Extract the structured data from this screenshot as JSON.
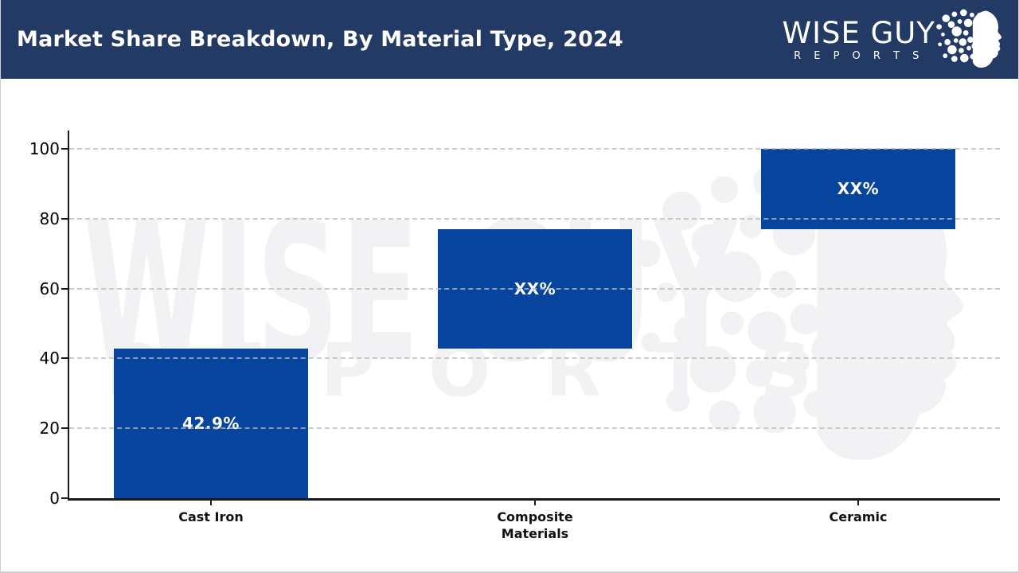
{
  "header": {
    "title": "Market Share Breakdown, By Material Type, 2024",
    "logo": {
      "line1": "WISE GUY",
      "line2": "R E P O R T S"
    }
  },
  "watermark": {
    "line1": "WISE GUY",
    "line2": "R E P O R T S"
  },
  "colors": {
    "header_bg": "#233A64",
    "bar_blue": "#07449E",
    "watermark_gray": "#F2F2F5",
    "gridline_gray": "#BEBEBE",
    "axis_black": "#1a1a1a",
    "label_white": "#ffffff"
  },
  "chart_data": {
    "type": "bar",
    "subtype": "stacked-percentage-waterfall",
    "title": "Market Share Breakdown, By Material Type, 2024",
    "categories": [
      "Cast Iron",
      "Composite Materials",
      "Ceramic"
    ],
    "bars": [
      {
        "category": "Cast Iron",
        "label_lines": [
          "Cast Iron"
        ],
        "value_label": "42.9%",
        "start": 0,
        "end": 42.9
      },
      {
        "category": "Composite Materials",
        "label_lines": [
          "Composite",
          "Materials"
        ],
        "value_label": "XX%",
        "start": 42.9,
        "end": 77.1
      },
      {
        "category": "Ceramic",
        "label_lines": [
          "Ceramic"
        ],
        "value_label": "XX%",
        "start": 77.1,
        "end": 100
      }
    ],
    "xlabel": "",
    "ylabel": "",
    "ylim": [
      0,
      100
    ],
    "yticks": [
      0,
      20,
      40,
      60,
      80,
      100
    ],
    "grid": "horizontal-dashed-over-bars",
    "legend": "none",
    "bar_color": "#07449E"
  }
}
